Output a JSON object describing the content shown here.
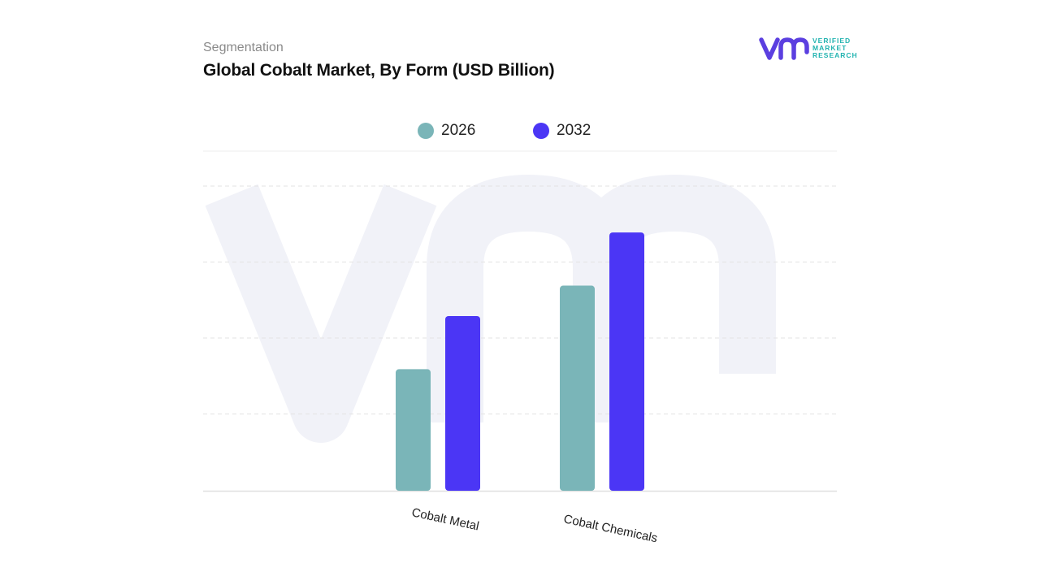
{
  "header": {
    "subtitle": "Segmentation",
    "title": "Global Cobalt Market, By Form (USD Billion)"
  },
  "logo": {
    "mark": "vmr",
    "lines": [
      "VERIFIED",
      "MARKET",
      "RESEARCH"
    ],
    "registered": "®"
  },
  "colors": {
    "series_2026": "#7ab5b8",
    "series_2032": "#4b36f5",
    "watermark": "#f1f2f8",
    "logo_mark": "#5b3fe0",
    "logo_text": "#22b3b0"
  },
  "chart_data": {
    "type": "bar",
    "title": "Global Cobalt Market, By Form (USD Billion)",
    "categories": [
      "Cobalt Metal",
      "Cobalt Chemicals"
    ],
    "series": [
      {
        "name": "2026",
        "values": [
          1.6,
          2.7
        ]
      },
      {
        "name": "2032",
        "values": [
          2.3,
          3.4
        ]
      }
    ],
    "ylim": [
      0,
      4
    ],
    "xlabel": "",
    "ylabel": "",
    "grid": true,
    "legend_position": "top-center",
    "tick_labels_rotated": true
  }
}
